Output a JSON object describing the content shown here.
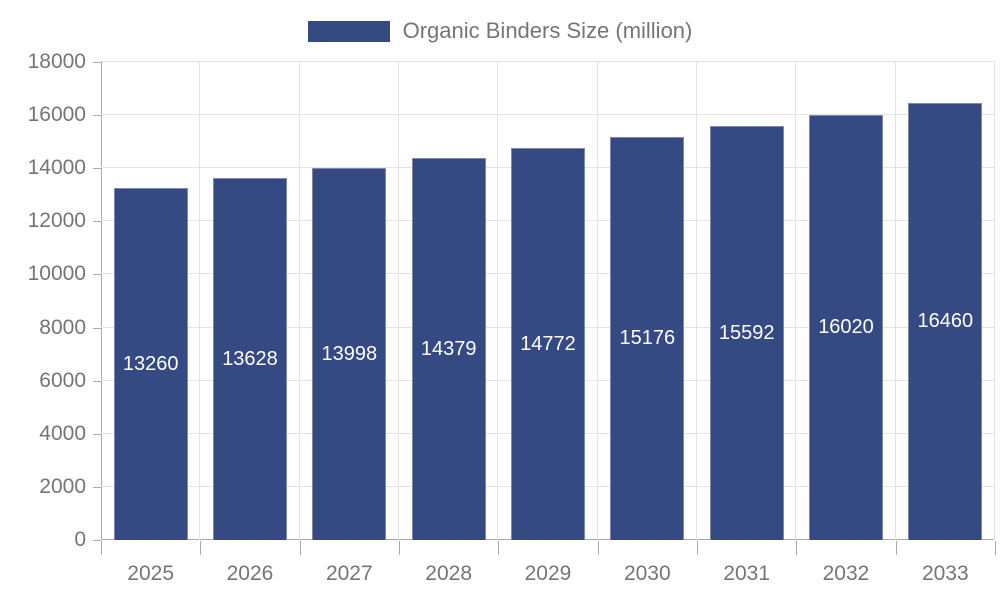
{
  "legend": {
    "label": "Organic Binders Size (million)"
  },
  "colors": {
    "bar": "#354983",
    "bar_border": "#8089a9",
    "axis": "#aaaaaa",
    "grid": "#e2e2e8",
    "text": "#757575",
    "value_label": "#ffffff"
  },
  "chart_data": {
    "type": "bar",
    "title": "Organic Binders Size (million)",
    "categories": [
      "2025",
      "2026",
      "2027",
      "2028",
      "2029",
      "2030",
      "2031",
      "2032",
      "2033"
    ],
    "values": [
      13260,
      13628,
      13998,
      14379,
      14772,
      15176,
      15592,
      16020,
      16460
    ],
    "xlabel": "",
    "ylabel": "",
    "ylim": [
      0,
      18000
    ],
    "ytick_step": 2000,
    "ytick_labels": [
      "0",
      "2000",
      "4000",
      "6000",
      "8000",
      "10000",
      "12000",
      "14000",
      "16000",
      "18000"
    ],
    "grid": true,
    "legend_position": "top",
    "value_labels_shown": true,
    "value_label_position": "inside-center"
  }
}
